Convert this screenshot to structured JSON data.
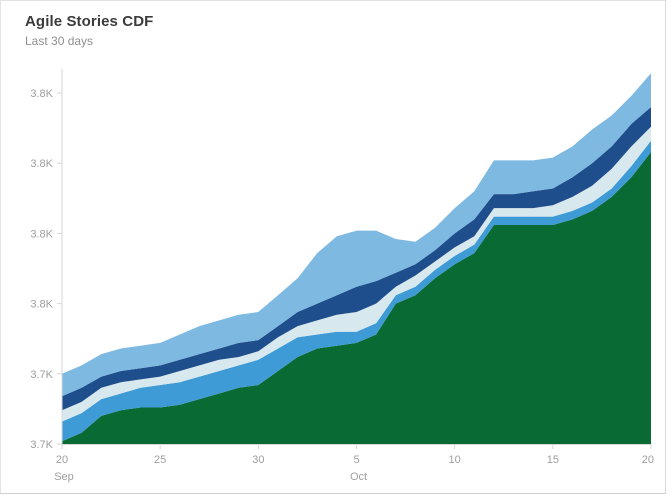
{
  "widget": {
    "title": "Agile Stories CDF",
    "subtitle": "Last 30 days"
  },
  "colors": {
    "card_border": "#e3e3e3",
    "title_text": "#3b3b3b",
    "subtitle_text": "#8f8f8f",
    "axis_text": "#9e9e9e",
    "axis_line": "#d6d6d6",
    "band_dark_green": "#0a6a33",
    "band_medium_blue": "#3e9bd6",
    "band_pale_blue": "#d8e8ef",
    "band_navy": "#1f4e8c",
    "band_light_blue": "#7eb9e2"
  },
  "chart_data": {
    "type": "area",
    "stacked": true,
    "title": "Agile Stories CDF",
    "subtitle": "Last 30 days",
    "grid": false,
    "legend_position": "none",
    "ylim": [
      3700,
      3835
    ],
    "y_ticks": [
      {
        "value": 3700,
        "label": "3.7K"
      },
      {
        "value": 3725,
        "label": "3.7K"
      },
      {
        "value": 3750,
        "label": "3.8K"
      },
      {
        "value": 3775,
        "label": "3.8K"
      },
      {
        "value": 3800,
        "label": "3.8K"
      },
      {
        "value": 3825,
        "label": "3.8K"
      }
    ],
    "x": [
      "Sep 20",
      "Sep 21",
      "Sep 22",
      "Sep 23",
      "Sep 24",
      "Sep 25",
      "Sep 26",
      "Sep 27",
      "Sep 28",
      "Sep 29",
      "Sep 30",
      "Oct 1",
      "Oct 2",
      "Oct 3",
      "Oct 4",
      "Oct 5",
      "Oct 6",
      "Oct 7",
      "Oct 8",
      "Oct 9",
      "Oct 10",
      "Oct 11",
      "Oct 12",
      "Oct 13",
      "Oct 14",
      "Oct 15",
      "Oct 16",
      "Oct 17",
      "Oct 18",
      "Oct 19",
      "Oct 20"
    ],
    "x_tick_labels": [
      {
        "index": 0,
        "label": "20",
        "month": "Sep"
      },
      {
        "index": 5,
        "label": "25"
      },
      {
        "index": 10,
        "label": "30"
      },
      {
        "index": 15,
        "label": "5",
        "month": "Oct"
      },
      {
        "index": 20,
        "label": "10"
      },
      {
        "index": 25,
        "label": "15"
      },
      {
        "index": 30,
        "label": "20"
      }
    ],
    "series_note": "Cumulative flow diagram: each series value is the stacked cumulative top of its band; band fills down to previous series (bottom band fills to axis floor 3700).",
    "series": [
      {
        "name": "band-1-dark-green",
        "color": "#0a6a33",
        "values": [
          3701,
          3704,
          3710,
          3712,
          3713,
          3713,
          3714,
          3716,
          3718,
          3720,
          3721,
          3726,
          3731,
          3734,
          3735,
          3736,
          3739,
          3750,
          3753,
          3759,
          3764,
          3768,
          3778,
          3778,
          3778,
          3778,
          3780,
          3783,
          3788,
          3795,
          3804
        ]
      },
      {
        "name": "band-2-medium-blue",
        "color": "#3e9bd6",
        "values": [
          3708,
          3711,
          3716,
          3718,
          3720,
          3721,
          3722,
          3724,
          3726,
          3728,
          3730,
          3734,
          3738,
          3739,
          3740,
          3740,
          3743,
          3753,
          3756,
          3762,
          3767,
          3771,
          3781,
          3781,
          3781,
          3781,
          3783,
          3786,
          3791,
          3799,
          3808
        ]
      },
      {
        "name": "band-3-pale-blue",
        "color": "#d8e8ef",
        "values": [
          3712,
          3715,
          3720,
          3722,
          3723,
          3724,
          3726,
          3728,
          3730,
          3731,
          3733,
          3738,
          3742,
          3744,
          3746,
          3747,
          3750,
          3756,
          3760,
          3765,
          3770,
          3774,
          3784,
          3784,
          3784,
          3785,
          3788,
          3792,
          3798,
          3806,
          3813
        ]
      },
      {
        "name": "band-4-navy",
        "color": "#1f4e8c",
        "values": [
          3717,
          3720,
          3724,
          3726,
          3727,
          3728,
          3730,
          3732,
          3734,
          3736,
          3737,
          3742,
          3747,
          3750,
          3753,
          3756,
          3758,
          3761,
          3764,
          3769,
          3775,
          3780,
          3789,
          3789,
          3790,
          3791,
          3795,
          3800,
          3806,
          3814,
          3820
        ]
      },
      {
        "name": "band-5-light-blue",
        "color": "#7eb9e2",
        "values": [
          3725,
          3728,
          3732,
          3734,
          3735,
          3736,
          3739,
          3742,
          3744,
          3746,
          3747,
          3753,
          3759,
          3768,
          3774,
          3776,
          3776,
          3773,
          3772,
          3777,
          3784,
          3790,
          3801,
          3801,
          3801,
          3802,
          3806,
          3812,
          3817,
          3824,
          3832
        ]
      }
    ]
  }
}
